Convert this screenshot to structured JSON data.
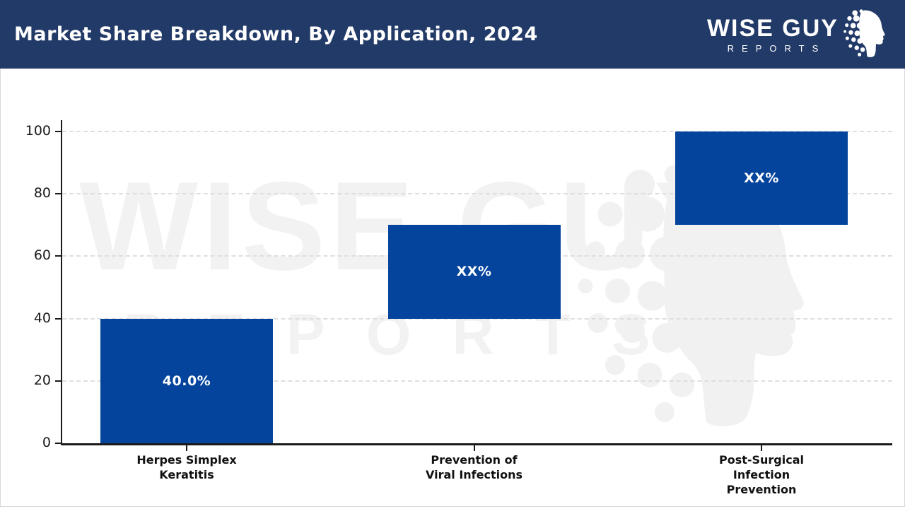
{
  "header": {
    "title": "Market Share Breakdown, By Application, 2024",
    "bg_color": "#223a67",
    "logo": {
      "line1": "WISE GUY",
      "line2": "REPORTS"
    }
  },
  "watermark": {
    "line1": "WISE GUY",
    "line2": "REPORTS"
  },
  "chart_data": {
    "type": "bar",
    "subtype": "waterfall",
    "title": "Market Share Breakdown, By Application, 2024",
    "categories": [
      "Herpes Simplex Keratitis",
      "Prevention of Viral Infections",
      "Post-Surgical Infection Prevention"
    ],
    "category_label_lines": [
      [
        "Herpes Simplex",
        "Keratitis"
      ],
      [
        "Prevention of",
        "Viral Infections"
      ],
      [
        "Post-Surgical",
        "Infection",
        "Prevention"
      ]
    ],
    "bars": [
      {
        "category": "Herpes Simplex Keratitis",
        "start": 0,
        "end": 40,
        "value_label": "40.0%"
      },
      {
        "category": "Prevention of Viral Infections",
        "start": 40,
        "end": 70,
        "value_label": "XX%"
      },
      {
        "category": "Post-Surgical Infection Prevention",
        "start": 70,
        "end": 100,
        "value_label": "XX%"
      }
    ],
    "xlabel": "",
    "ylabel": "",
    "ylim": [
      0,
      100
    ],
    "yticks": [
      0,
      20,
      40,
      60,
      80,
      100
    ],
    "grid": "horizontal-dashed",
    "legend": "none",
    "colors": {
      "bar": "#04449c",
      "bar_label": "#ffffff",
      "axis": "#1a1a1a",
      "gridline": "#dedede",
      "header_bg": "#223a67",
      "watermark": "#f2f2f2"
    }
  }
}
